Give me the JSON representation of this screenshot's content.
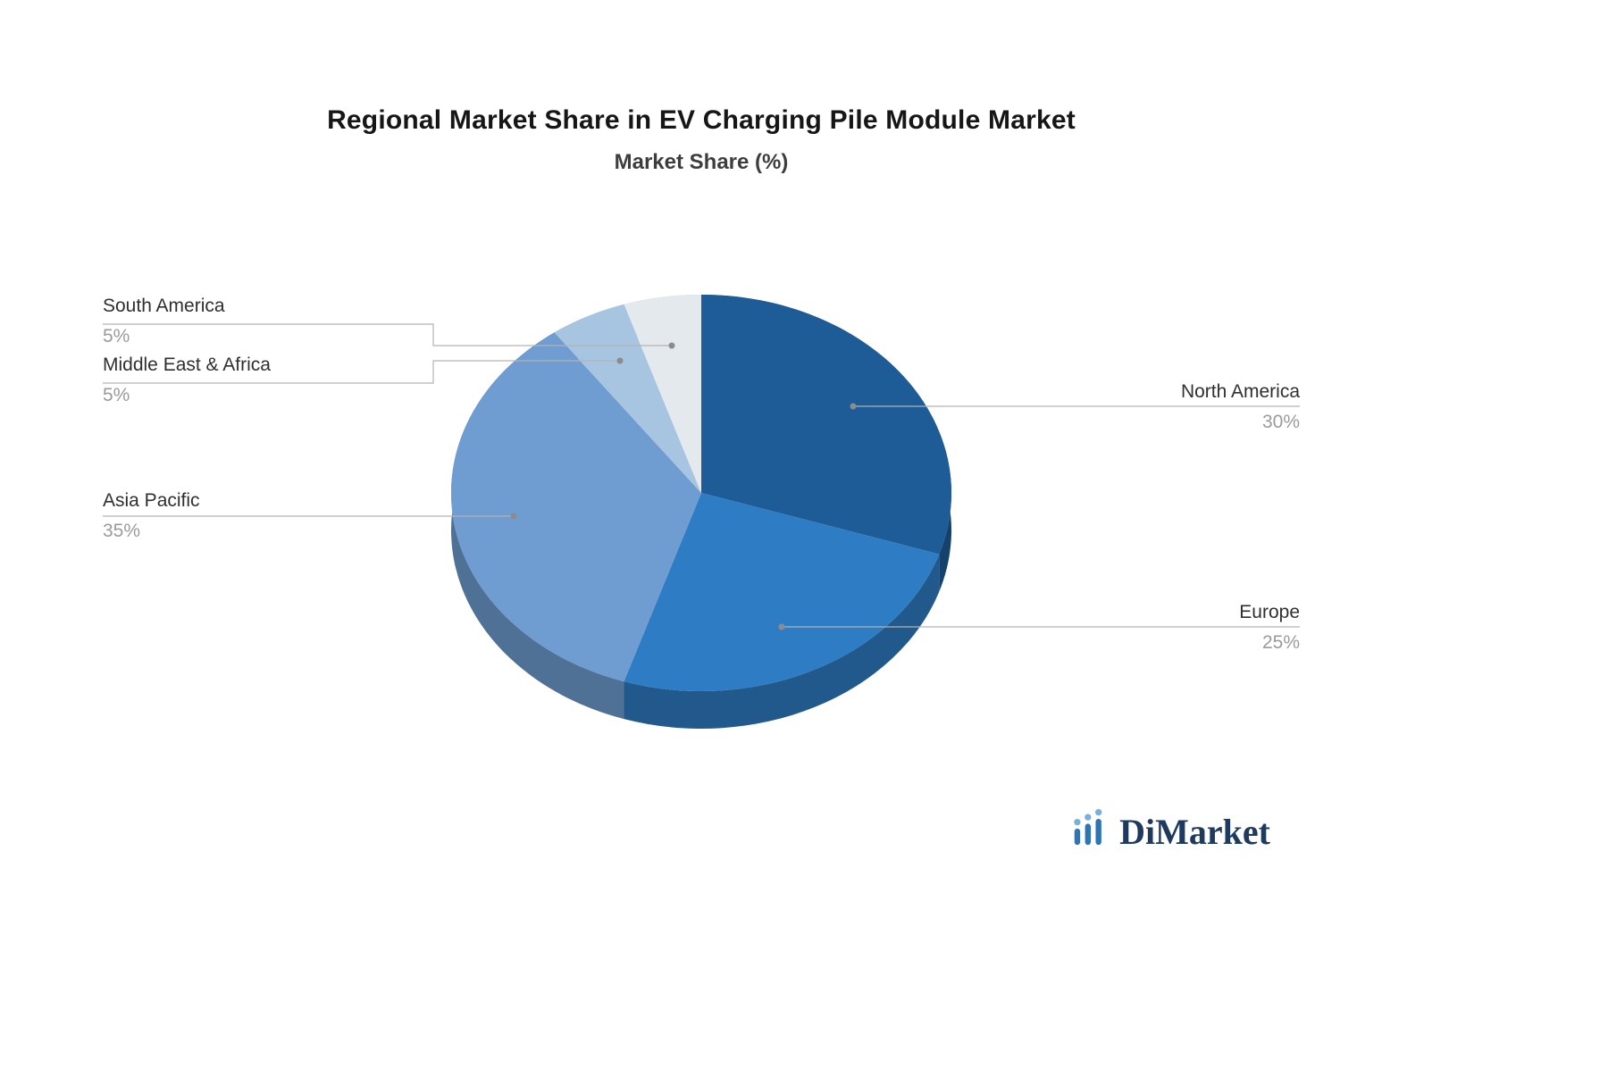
{
  "chart_data": {
    "type": "pie",
    "style": "3d",
    "title": "Regional Market Share in EV Charging Pile Module Market",
    "subtitle": "Market Share (%)",
    "unit": "%",
    "labels": [
      "North America",
      "Europe",
      "Asia Pacific",
      "Middle East & Africa",
      "South America"
    ],
    "values": [
      30,
      25,
      35,
      5,
      5
    ],
    "colors": [
      "#1d5c96",
      "#2e7cc3",
      "#6f9dd1",
      "#a7c4e0",
      "#e4e9ee"
    ],
    "start_angle": "top",
    "direction": "clockwise",
    "legend_position": "none",
    "labeling": "external-callouts-with-leader-lines"
  },
  "callouts": [
    {
      "label": "North America",
      "value": "30%"
    },
    {
      "label": "Europe",
      "value": "25%"
    },
    {
      "label": "Asia Pacific",
      "value": "35%"
    },
    {
      "label": "Middle East & Africa",
      "value": "5%"
    },
    {
      "label": "South America",
      "value": "5%"
    }
  ],
  "branding": {
    "logo_text": "DiMarket",
    "logo_icon": "bar-chart-logo-icon",
    "logo_text_color": "#1e3a5f",
    "logo_icon_color": "#2e75b6",
    "logo_icon_dot_color": "#7aaede"
  }
}
